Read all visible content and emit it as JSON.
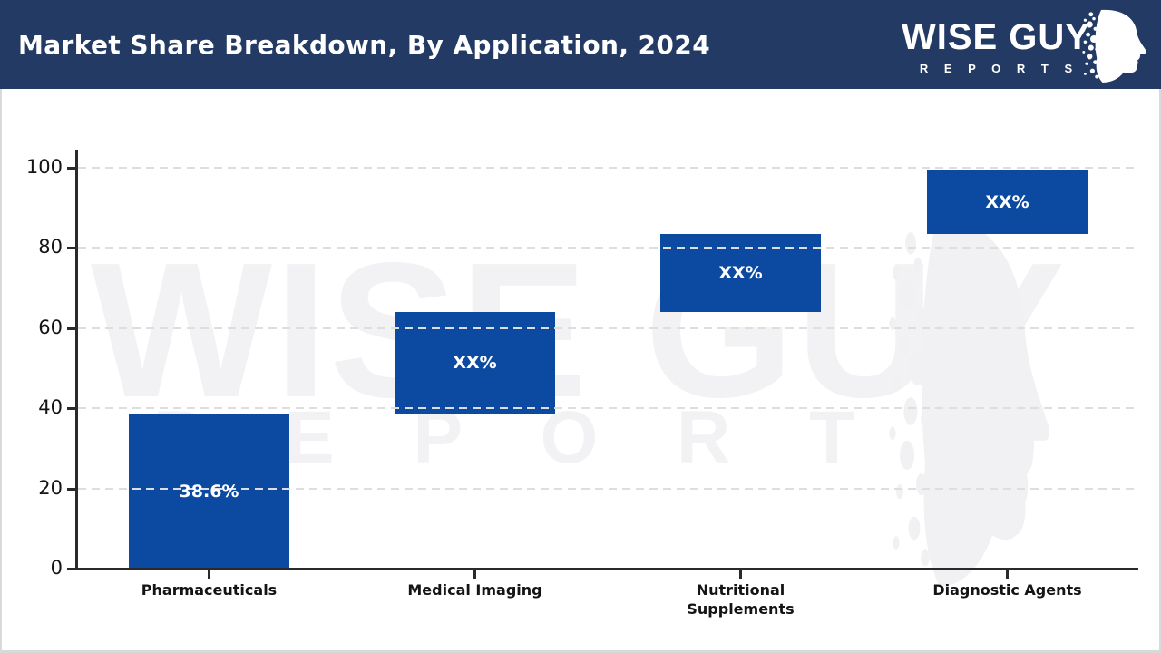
{
  "header": {
    "title": "Market Share Breakdown, By Application, 2024",
    "bg_color": "#223a64",
    "logo": {
      "line1": "WISE GUY",
      "line2": "R E P O R T S"
    }
  },
  "watermark": {
    "line1": "WISE GUY",
    "line2": "R E P O R T S"
  },
  "chart_data": {
    "type": "bar",
    "subtype": "floating-segment-waterfall",
    "title": "Market Share Breakdown, By Application, 2024",
    "categories": [
      "Pharmaceuticals",
      "Medical Imaging",
      "Nutritional Supplements",
      "Diagnostic Agents"
    ],
    "segments": [
      {
        "category": "Pharmaceuticals",
        "from": 0,
        "to": 38.6,
        "label": "38.6%"
      },
      {
        "category": "Medical Imaging",
        "from": 38.6,
        "to": 64,
        "label": "XX%"
      },
      {
        "category": "Nutritional Supplements",
        "from": 64,
        "to": 83.5,
        "label": "XX%"
      },
      {
        "category": "Diagnostic Agents",
        "from": 83.5,
        "to": 99.5,
        "label": "XX%"
      }
    ],
    "yticks": [
      0,
      20,
      40,
      60,
      80,
      100
    ],
    "ylim": [
      0,
      103.5
    ],
    "xlabel": "",
    "ylabel": "",
    "grid": "dashed-horizontal",
    "legend": "none",
    "bar_color": "#0b4aa0",
    "bar_label_color": "#ffffff",
    "axis_color": "#2a2a2a",
    "grid_color": "#dedede"
  }
}
